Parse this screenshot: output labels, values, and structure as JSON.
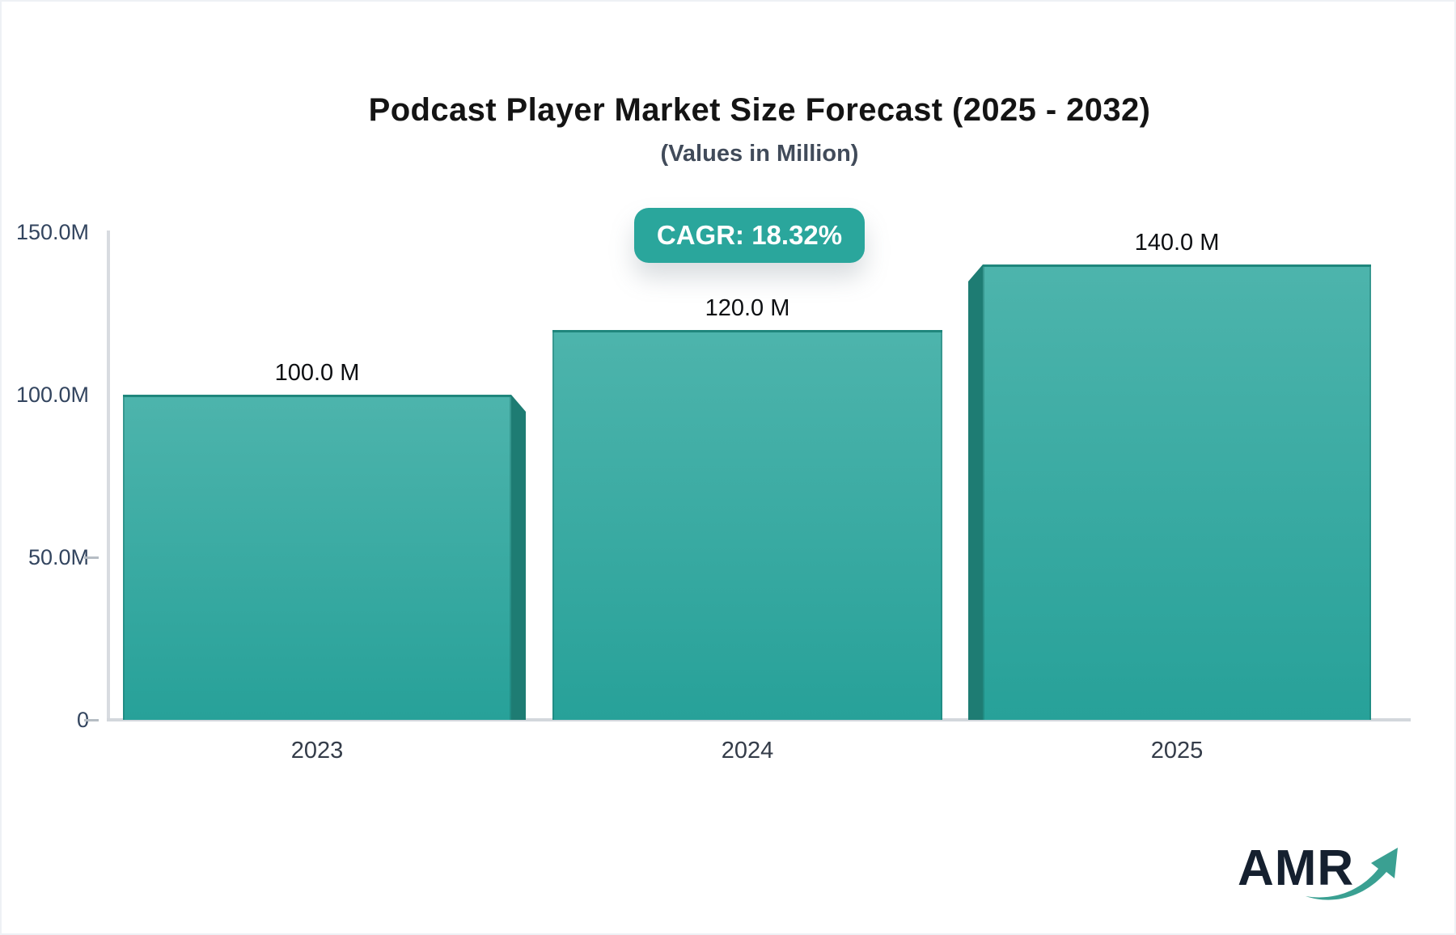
{
  "header": {
    "title": "Podcast Player Market Size Forecast (2025 - 2032)",
    "subtitle": "(Values in Million)",
    "badge_label": "CAGR: 18.32%"
  },
  "chart_data": {
    "type": "bar",
    "title": "Podcast Player Market Size Forecast (2025 - 2032)",
    "subtitle": "(Values in Million)",
    "cagr": "18.32%",
    "categories": [
      "2023",
      "2024",
      "2025"
    ],
    "values": [
      100,
      120,
      140
    ],
    "value_labels": [
      "100.0 M",
      "120.0 M",
      "140.0 M"
    ],
    "unit": "Million",
    "ylim": [
      0,
      150
    ],
    "grid": false,
    "legend": "none",
    "yticks": [
      {
        "label": "150.0M",
        "value": 150,
        "show_dash": false
      },
      {
        "label": "100.0M",
        "value": 100,
        "show_dash": false
      },
      {
        "label": "50.0M",
        "value": 50,
        "show_dash": true
      },
      {
        "label": "0",
        "value": 0,
        "show_dash": true
      }
    ]
  },
  "colors": {
    "bar_top": "#4db4ac",
    "bar_bottom": "#27a199",
    "bar_side": "#1e7c73",
    "bar_edge": "#1f867c",
    "badge_bg": "#2aa69c",
    "badge_text": "#ffffff",
    "axis_line": "#d3d7dc",
    "tick": "#b6bdc4",
    "y_label": "#33455f",
    "x_label": "#343c49",
    "value_label": "#0d0f12",
    "logo_text_color": "#15202f",
    "logo_arrow_color": "#3aa092"
  },
  "logo": {
    "text": "AMR"
  }
}
